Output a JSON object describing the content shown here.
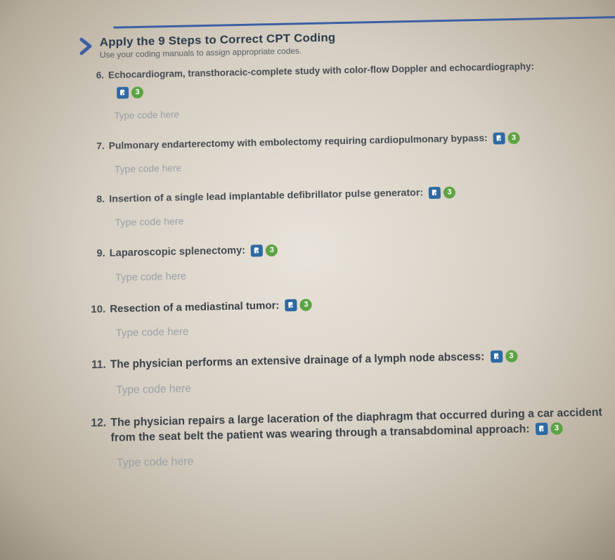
{
  "heading": {
    "title": "Apply the 9 Steps to Correct CPT Coding",
    "subtitle": "Use your coding manuals to assign appropriate codes."
  },
  "colors": {
    "rule": "#3a5ea4",
    "chevron": "#3a5ea4",
    "doc_badge_bg": "#2e6aa3",
    "count_badge_bg": "#5da343",
    "count_badge_text": "#ffffff",
    "heading_text": "#2a3a4a",
    "body_text": "#444b52",
    "placeholder_text": "#9aa0a6"
  },
  "badge_count": "3",
  "placeholder_label": "Type code here",
  "questions": [
    {
      "number": "6.",
      "text": "Echocardiogram, transthoracic-complete study with color-flow Doppler and echocardiography:",
      "icons_below": true
    },
    {
      "number": "7.",
      "text": "Pulmonary endarterectomy with embolectomy requiring cardiopulmonary bypass:",
      "icons_below": false
    },
    {
      "number": "8.",
      "text": "Insertion of a single lead implantable defibrillator pulse generator:",
      "icons_below": false
    },
    {
      "number": "9.",
      "text": "Laparoscopic splenectomy:",
      "icons_below": false
    },
    {
      "number": "10.",
      "text": "Resection of a mediastinal tumor:",
      "icons_below": false
    },
    {
      "number": "11.",
      "text": "The physician performs an extensive drainage of a lymph node abscess:",
      "icons_below": false
    },
    {
      "number": "12.",
      "text": "The physician repairs a large laceration of the diaphragm that occurred during a car accident from the seat belt the patient was wearing through a transabdominal approach:",
      "icons_below": false
    }
  ]
}
